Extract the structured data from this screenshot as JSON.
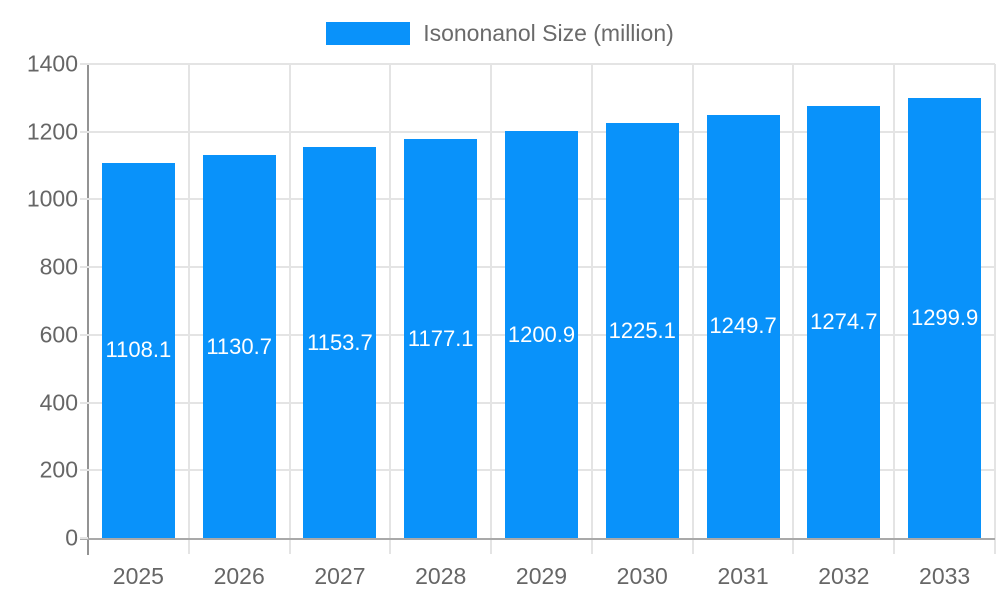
{
  "chart_data": {
    "type": "bar",
    "legend": "Isononanol Size (million)",
    "legend_position": "top",
    "categories": [
      "2025",
      "2026",
      "2027",
      "2028",
      "2029",
      "2030",
      "2031",
      "2032",
      "2033"
    ],
    "values": [
      1108.1,
      1130.7,
      1153.7,
      1177.1,
      1200.9,
      1225.1,
      1249.7,
      1274.7,
      1299.9
    ],
    "value_labels": [
      "1108.1",
      "1130.7",
      "1153.7",
      "1177.1",
      "1200.9",
      "1225.1",
      "1249.7",
      "1274.7",
      "1299.9"
    ],
    "ylim": [
      0,
      1400
    ],
    "y_ticks": [
      0,
      200,
      400,
      600,
      800,
      1000,
      1200,
      1400
    ],
    "grid": true,
    "colors": {
      "bar": "#0992fa",
      "grid": "#e4e4e4",
      "axis": "#999999",
      "axis_text": "#666666",
      "legend_text": "#6a6a6a",
      "value_label": "#ffffff",
      "background": "#ffffff"
    }
  }
}
